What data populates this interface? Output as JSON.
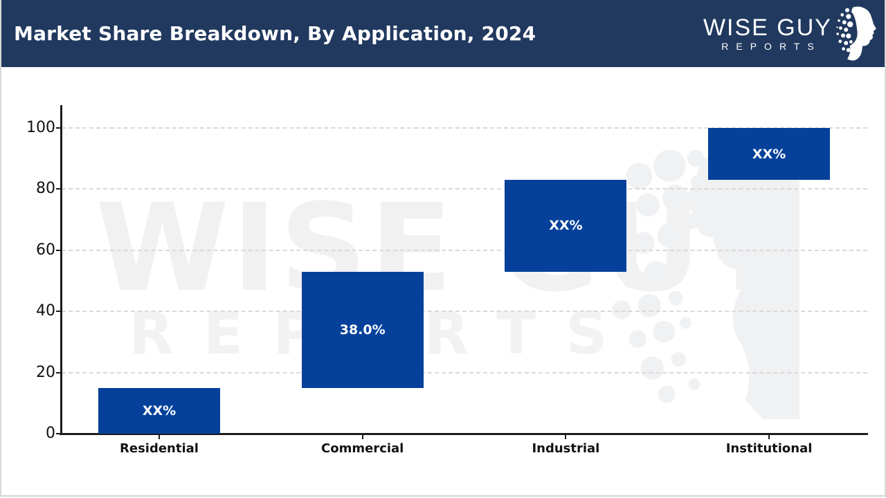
{
  "header": {
    "title": "Market Share Breakdown, By Application, 2024",
    "logo": {
      "line1": "WISE GUY",
      "line2": "REPORTS"
    }
  },
  "watermark": {
    "line1": "WISE GUY",
    "line2": "REPORTS"
  },
  "chart_data": {
    "type": "bar",
    "subtype": "floating-segment-waterfall",
    "title": "Market Share Breakdown, By Application, 2024",
    "categories": [
      "Residential",
      "Commercial",
      "Industrial",
      "Institutional"
    ],
    "bars": [
      {
        "category": "Residential",
        "start": 0,
        "end": 15,
        "value": 15,
        "label": "XX%"
      },
      {
        "category": "Commercial",
        "start": 15,
        "end": 53,
        "value": 38,
        "label": "38.0%"
      },
      {
        "category": "Industrial",
        "start": 53,
        "end": 83,
        "value": 30,
        "label": "XX%"
      },
      {
        "category": "Institutional",
        "start": 83,
        "end": 100,
        "value": 17,
        "label": "XX%"
      }
    ],
    "yticks": [
      0,
      20,
      40,
      60,
      80,
      100
    ],
    "ytick_labels": [
      "0",
      "20",
      "40",
      "60",
      "80",
      "100"
    ],
    "ylim": [
      0,
      107.5
    ],
    "xlabel": "",
    "ylabel": "",
    "grid": "horizontal-dashed",
    "legend": "none",
    "colors": {
      "bar": "#05419b",
      "bar_label": "#ffffff",
      "header_bg": "#21395f",
      "gridline": "#d9d9d9",
      "axis": "#1c1c1c",
      "watermark": "#f1f1f1"
    }
  }
}
